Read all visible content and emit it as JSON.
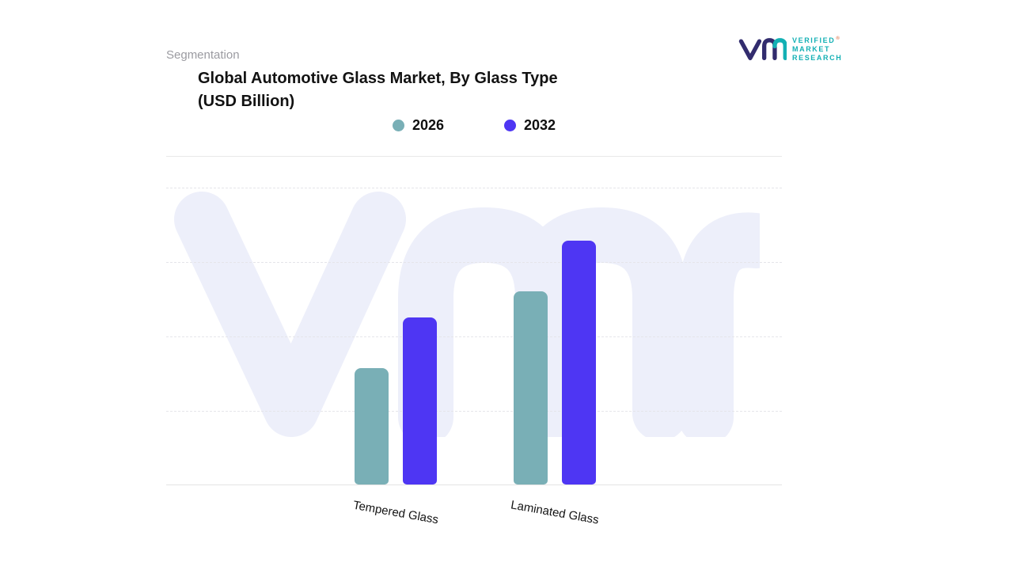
{
  "page": {
    "eyebrow": "Segmentation",
    "title_line1": "Global Automotive Glass Market, By Glass Type",
    "title_line2": "(USD Billion)"
  },
  "logo": {
    "name_lines": [
      "VERIFIED",
      "MARKET",
      "RESEARCH"
    ],
    "registered_mark": "®",
    "teal": "#13b0b4",
    "navy": "#322c6e"
  },
  "legend": [
    {
      "label": "2026",
      "color": "#79afb6"
    },
    {
      "label": "2032",
      "color": "#4e36f3"
    }
  ],
  "chart_data": {
    "type": "bar",
    "title": "Global Automotive Glass Market, By Glass Type (USD Billion)",
    "categories": [
      "Tempered Glass",
      "Laminated Glass"
    ],
    "series": [
      {
        "name": "2026",
        "color": "#79afb6",
        "values": [
          39,
          65
        ]
      },
      {
        "name": "2032",
        "color": "#4e36f3",
        "values": [
          56,
          82
        ]
      }
    ],
    "xlabel": "",
    "ylabel": "",
    "ylim": [
      0,
      100
    ],
    "y_ticks_visible": false,
    "values_estimated": true,
    "grid": "horizontal-dashed",
    "legend_position": "top"
  }
}
